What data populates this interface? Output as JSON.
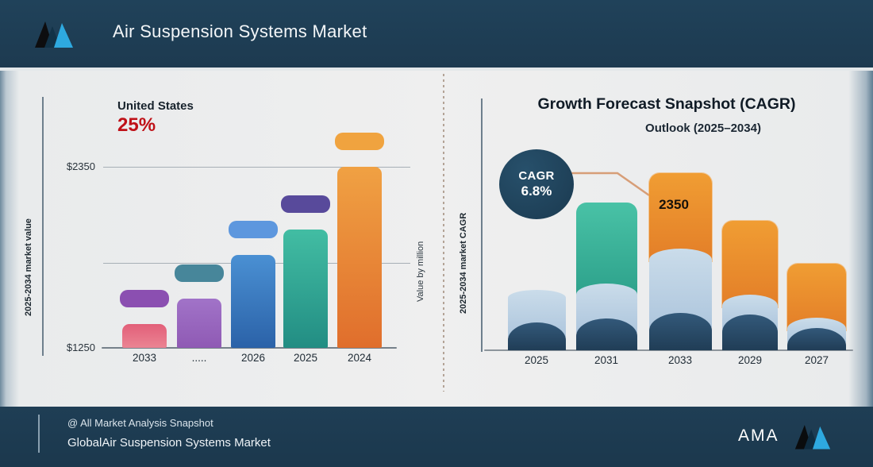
{
  "header": {
    "title": "Air Suspension Systems Market",
    "logo": "ama-mountain-logo"
  },
  "left_chart": {
    "region_label": "United States",
    "growth_value": "25%",
    "y_axis_label": "2025-2034 market value",
    "right_axis_label": "Value by million"
  },
  "right_chart": {
    "title": "Growth Forecast Snapshot (CAGR)",
    "subtitle": "Outlook (2025–2034)",
    "y_axis_label": "2025-2034 market CAGR",
    "cagr_badge": {
      "label": "CAGR",
      "value": "6.8%"
    }
  },
  "footer": {
    "line1": "@ All Market Analysis Snapshot",
    "line2": "GlobalAir Suspension Systems Market",
    "brand": "AMA",
    "logo": "ama-mountain-logo"
  },
  "colors": {
    "header_bg": "#1e3d52",
    "accent_red": "#bf1118",
    "badge_navy": "#1c3c52",
    "connector": "#d79e78",
    "logo_cyan": "#2ea9e0"
  },
  "chart_data": [
    {
      "type": "bar",
      "title": "United States",
      "subtitle": "25%",
      "categories": [
        "2033",
        ".....",
        "2026",
        "2025",
        "2024"
      ],
      "values": [
        1395,
        1550,
        1815,
        1970,
        2350
      ],
      "ylabel": "2025-2034 market value",
      "ylabel_right": "Value by million",
      "ylim": [
        1250,
        2420
      ],
      "yticks": [
        {
          "label": "$2350",
          "value": 2350
        },
        {
          "label": "$1250",
          "value": 1250
        }
      ],
      "gridline_values": [
        2350,
        1766
      ],
      "grid": true,
      "legend": "none",
      "bar_color_names": [
        "pink",
        "purple",
        "blue",
        "teal",
        "orange"
      ],
      "accent_marker_colors": [
        "#8b4fb1",
        "#47869a",
        "#5d97de",
        "#584a9b",
        "#f0a33f"
      ]
    },
    {
      "type": "bar",
      "stacked": true,
      "title": "Growth Forecast Snapshot (CAGR)",
      "subtitle": "Outlook (2025–2034)",
      "ylabel": "2025-2034 market CAGR",
      "categories": [
        "2025",
        "2031",
        "2033",
        "2029",
        "2027"
      ],
      "series": [
        {
          "name": "base",
          "color": "navy",
          "values": [
            35,
            40,
            47,
            45,
            28
          ]
        },
        {
          "name": "middle",
          "color": "lightblue",
          "values": [
            41,
            44,
            81,
            25,
            13
          ]
        },
        {
          "name": "top",
          "colors": [
            "lightblue",
            "teal",
            "orange",
            "orange",
            "orange"
          ],
          "values": [
            0,
            102,
            95,
            93,
            68
          ]
        }
      ],
      "totals": [
        76,
        186,
        223,
        163,
        109
      ],
      "annotations": [
        {
          "text": "2350",
          "category": "2033",
          "type": "bar-label"
        },
        {
          "text": "CAGR 6.8%",
          "type": "callout-badge",
          "value": "6.8%"
        }
      ],
      "legend": "none",
      "grid": false
    }
  ]
}
